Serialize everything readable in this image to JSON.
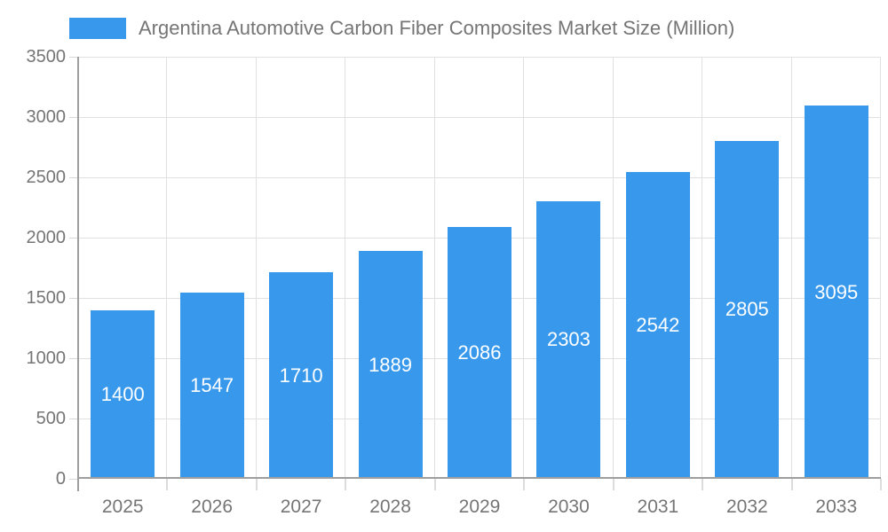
{
  "chart_data": {
    "type": "bar",
    "title": "Argentina Automotive Carbon Fiber Composites Market Size (Million)",
    "categories": [
      "2025",
      "2026",
      "2027",
      "2028",
      "2029",
      "2030",
      "2031",
      "2032",
      "2033"
    ],
    "values": [
      1400,
      1547,
      1710,
      1889,
      2086,
      2303,
      2542,
      2805,
      3095
    ],
    "yticks": [
      0,
      500,
      1000,
      1500,
      2000,
      2500,
      3000,
      3500
    ],
    "ylim": [
      0,
      3500
    ],
    "xlabel": "",
    "ylabel": "",
    "grid": true,
    "legend_position": "top-left",
    "value_label_position": "inside-center",
    "colors": {
      "bar": "#3899EC",
      "grid_line": "#e0e0e0",
      "axis_line": "#9e9e9e",
      "axis_text": "#757575",
      "value_text": "#ffffff",
      "background": "#ffffff"
    }
  }
}
